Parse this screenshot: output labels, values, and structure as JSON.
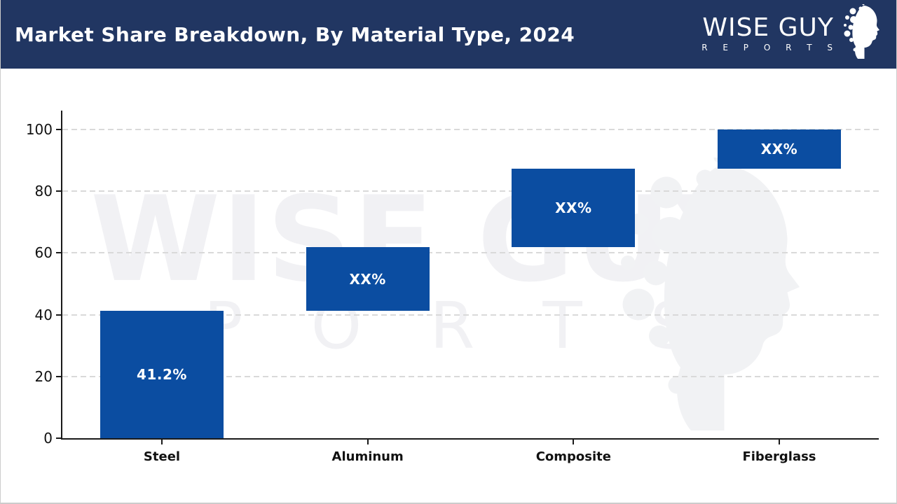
{
  "header": {
    "title": "Market Share Breakdown, By Material Type, 2024",
    "logo": {
      "name": "WISE GUY",
      "sub": "R E P O R T S",
      "icon": "wiseguy-head-icon"
    }
  },
  "watermark": {
    "line1": "WISE GUY",
    "line2": "P O R T S",
    "icon": "wiseguy-head-watermark-icon"
  },
  "chart_data": {
    "type": "bar",
    "variant": "floating-waterfall",
    "title": "Market Share Breakdown, By Material Type, 2024",
    "categories": [
      "Steel",
      "Aluminum",
      "Composite",
      "Fiberglass"
    ],
    "bars": [
      {
        "category": "Steel",
        "start": 0,
        "end": 41.2,
        "label": "41.2%"
      },
      {
        "category": "Aluminum",
        "start": 41.2,
        "end": 61.9,
        "label": "XX%"
      },
      {
        "category": "Composite",
        "start": 61.9,
        "end": 87.4,
        "label": "XX%"
      },
      {
        "category": "Fiberglass",
        "start": 87.4,
        "end": 100,
        "label": "XX%"
      }
    ],
    "yticks": [
      0,
      20,
      40,
      60,
      80,
      100
    ],
    "ylim": [
      0,
      105.5
    ],
    "xlabel": "",
    "ylabel": "",
    "grid": {
      "axis": "y",
      "style": "dashed",
      "color": "#D9D9D9"
    },
    "legend": null,
    "bar_color": "#0B4DA1",
    "bar_label_color": "#FFFFFF"
  },
  "colors": {
    "header_bg": "#213662",
    "page_bg": "#FFFFFF",
    "bar": "#0B4DA1",
    "watermark": "#F1F1F4",
    "axis": "#1A1A1A",
    "grid": "#D9D9D9",
    "tick_label": "#111111"
  }
}
